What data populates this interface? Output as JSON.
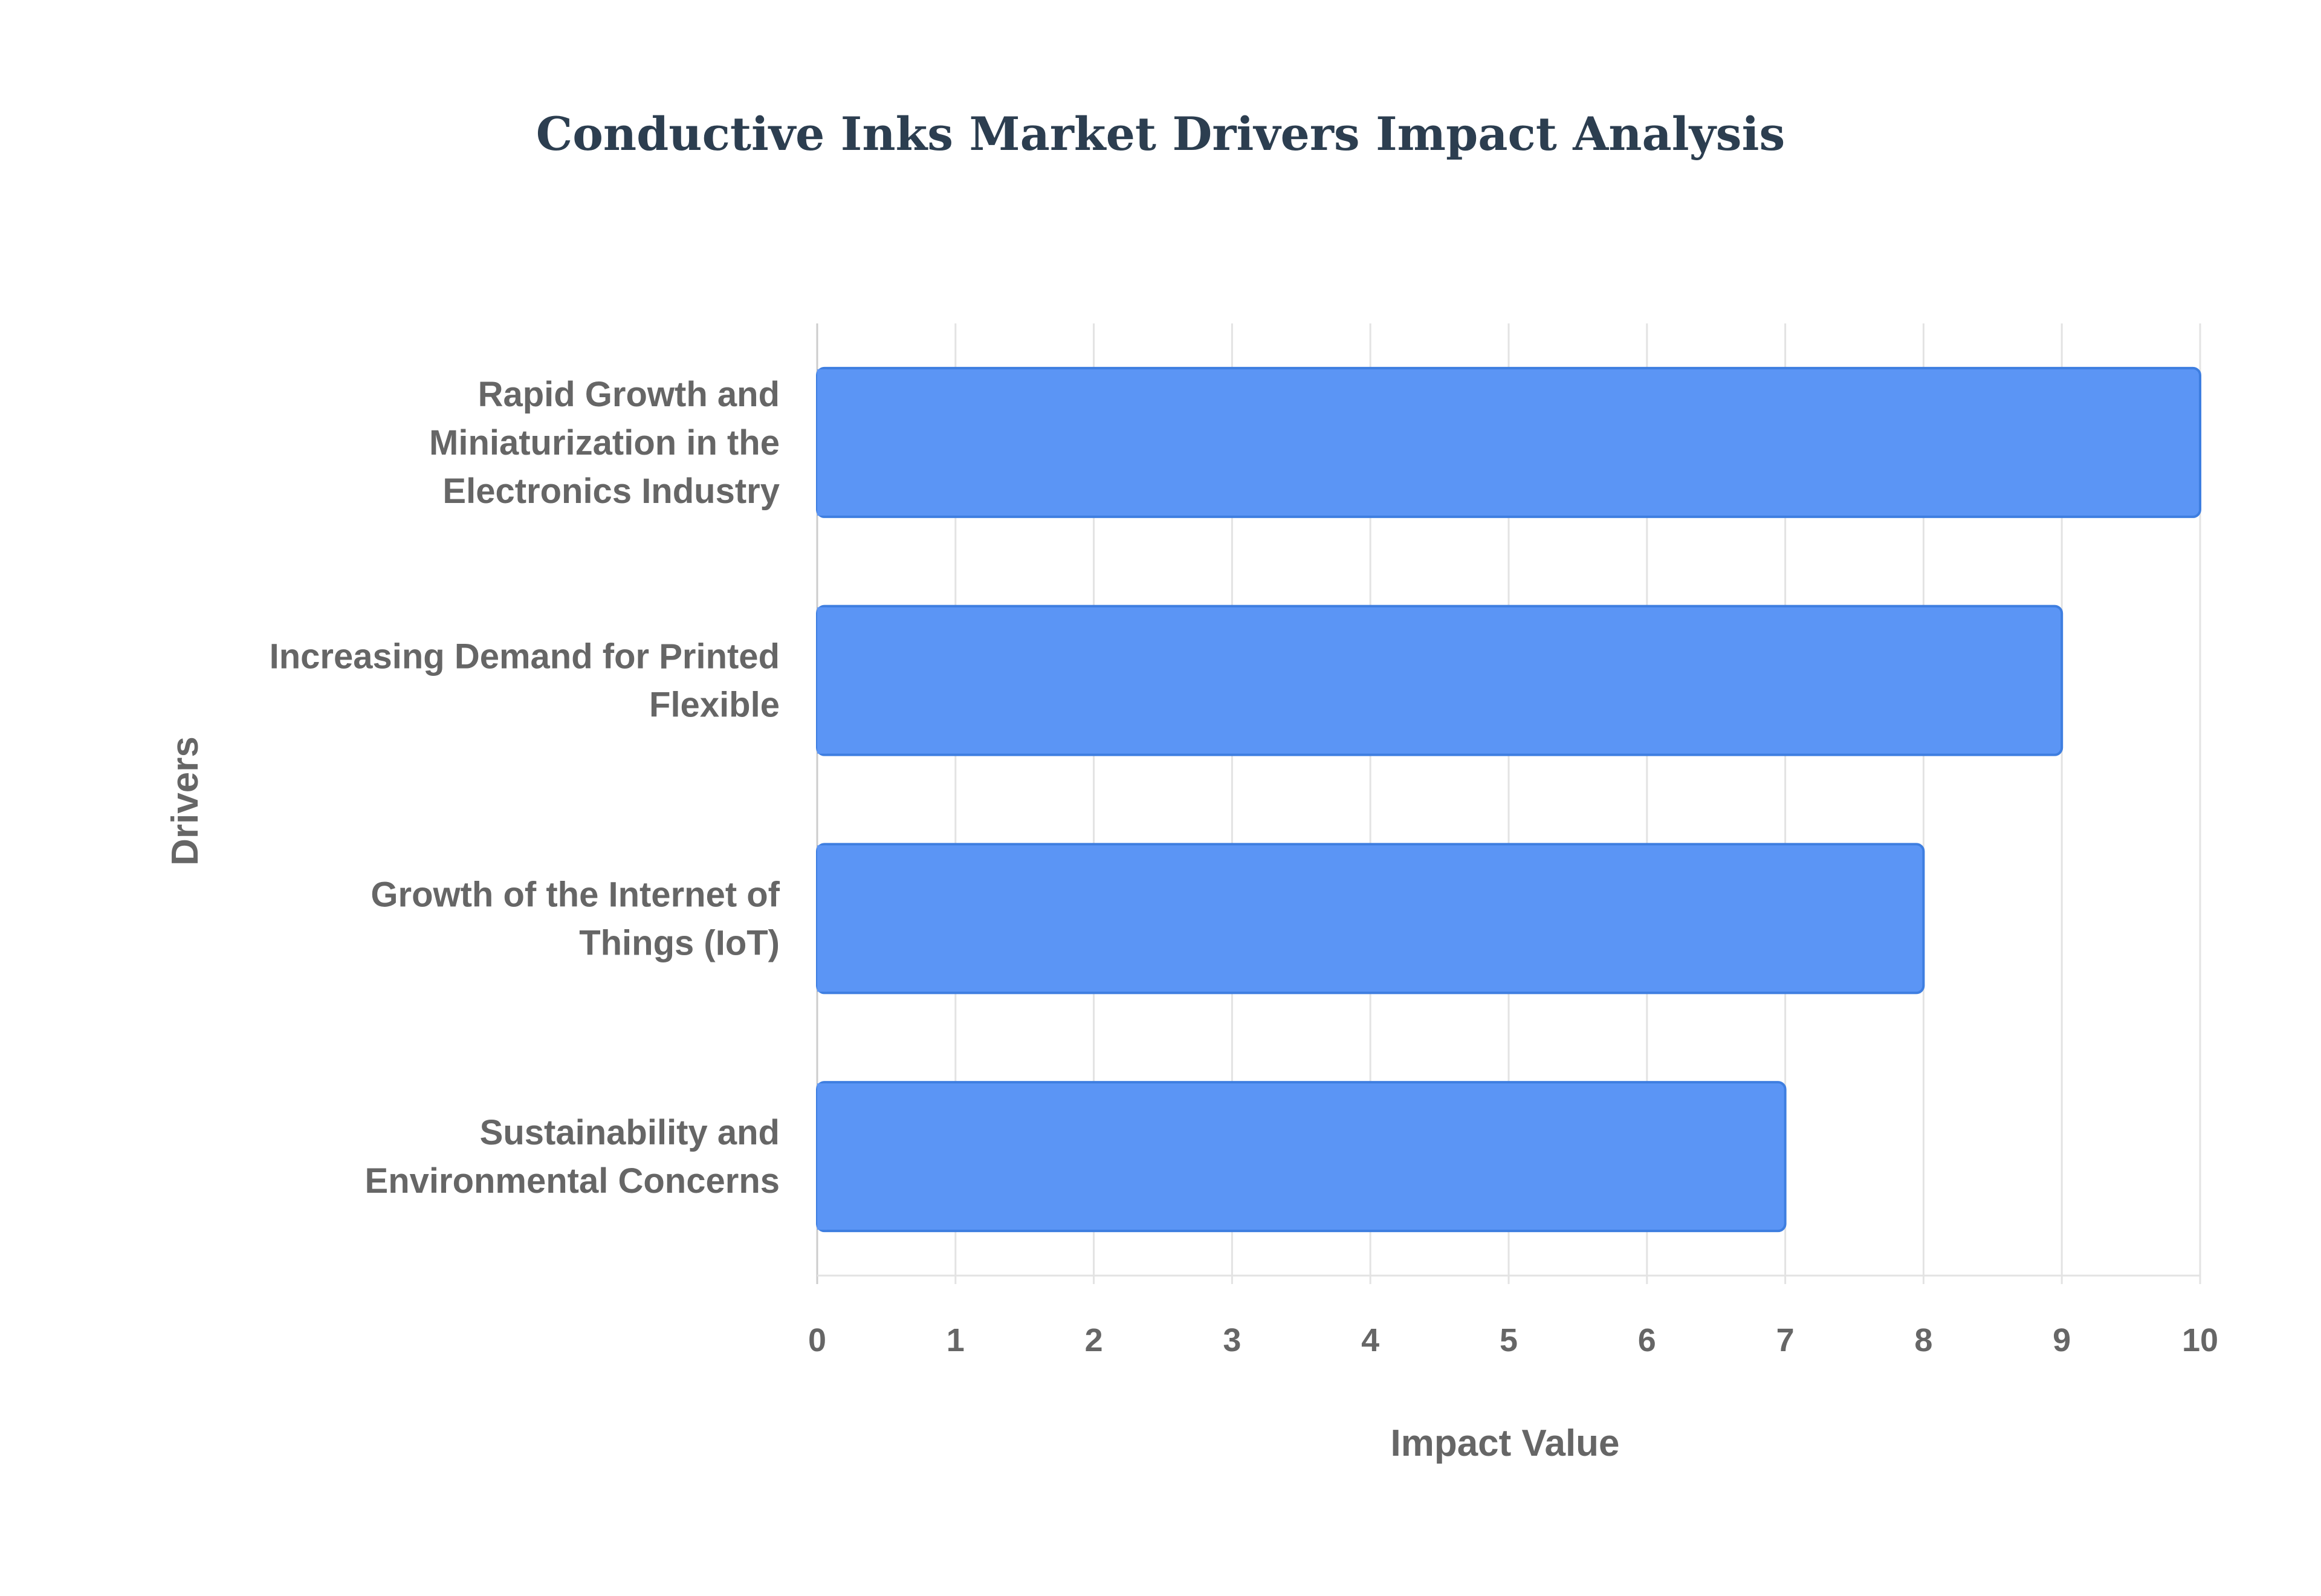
{
  "colors": {
    "bar_fill": "#5b95f5",
    "bar_stroke": "#3e7ee0",
    "grid": "#e3e3e3",
    "axis": "#cccccc",
    "title": "#2c3e50",
    "text": "#666666"
  },
  "chart_data": {
    "type": "bar",
    "orientation": "horizontal",
    "title": "Conductive Inks Market Drivers Impact Analysis",
    "xlabel": "Impact Value",
    "ylabel": "Drivers",
    "categories": [
      "Rapid Growth and Miniaturization in the Electronics Industry",
      "Increasing Demand for Printed Flexible",
      "Growth of the Internet of Things (IoT)",
      "Sustainability and Environmental Concerns"
    ],
    "category_lines": [
      [
        "Rapid Growth and",
        "Miniaturization in the",
        "Electronics Industry"
      ],
      [
        "Increasing Demand for Printed",
        "Flexible"
      ],
      [
        "Growth of the Internet of",
        "Things (IoT)"
      ],
      [
        "Sustainability and",
        "Environmental Concerns"
      ]
    ],
    "values": [
      10,
      9,
      8,
      7
    ],
    "xlim": [
      0,
      10
    ],
    "xticks": [
      0,
      1,
      2,
      3,
      4,
      5,
      6,
      7,
      8,
      9,
      10
    ],
    "grid": true,
    "legend": "none"
  }
}
